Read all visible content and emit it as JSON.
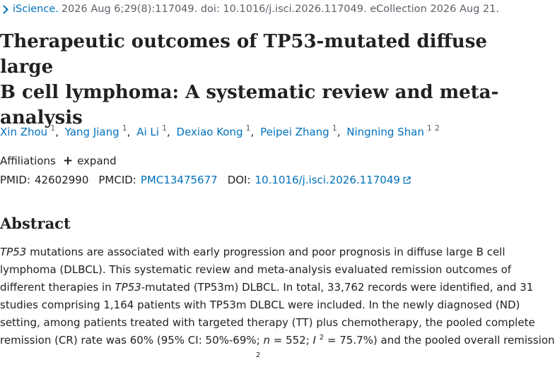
{
  "citation": {
    "journal": "iScience.",
    "details": "2026 Aug 6;29(8):117049. doi: 10.1016/j.isci.2026.117049. eCollection 2026 Aug 21."
  },
  "title": {
    "line1": "Therapeutic outcomes of TP53-mutated diffuse large",
    "line2": "B cell lymphoma: A systematic review and meta-",
    "line3": "analysis"
  },
  "authors": [
    {
      "name": "Xin Zhou",
      "affil": "1"
    },
    {
      "name": "Yang Jiang",
      "affil": "1"
    },
    {
      "name": "Ai Li",
      "affil": "1"
    },
    {
      "name": "Dexiao Kong",
      "affil": "1"
    },
    {
      "name": "Peipei Zhang",
      "affil": "1"
    },
    {
      "name": "Ningning Shan",
      "affil": "1",
      "affil2": "2"
    }
  ],
  "affiliations": {
    "label": "Affiliations",
    "expand_label": "expand"
  },
  "identifiers": {
    "pmid_label": "PMID:",
    "pmid": "42602990",
    "pmcid_label": "PMCID:",
    "pmcid": "PMC13475677",
    "doi_label": "DOI:",
    "doi": "10.1016/j.isci.2026.117049"
  },
  "abstract": {
    "heading": "Abstract",
    "l1_italic": "TP53",
    "l1_rest": " mutations are associated with early progression and poor prognosis in diffuse large B cell",
    "l2": "lymphoma (DLBCL). This systematic review and meta-analysis evaluated remission outcomes of",
    "l3_pre": "different therapies in ",
    "l3_italic": "TP53",
    "l3_post": "-mutated (TP53m) DLBCL. In total, 33,762 records were identified, and 31",
    "l4": "studies comprising 1,164 patients with TP53m DLBCL were included. In the newly diagnosed (ND)",
    "l5": "setting, among patients treated with targeted therapy (TT) plus chemotherapy, the pooled complete",
    "l6_pre": "remission (CR) rate was 60% (95% CI: 50%-69%; ",
    "l6_n": "n",
    "l6_mid": " = 552; ",
    "l6_i": "I",
    "l6_sup": "2",
    "l6_post": " = 75.7%) and the pooled overall remission",
    "l7_sup": "2"
  }
}
